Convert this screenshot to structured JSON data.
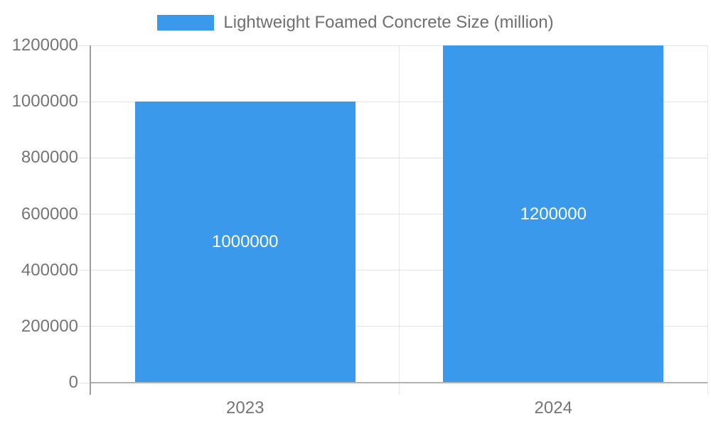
{
  "chart_data": {
    "type": "bar",
    "categories": [
      "2023",
      "2024"
    ],
    "series": [
      {
        "name": "Lightweight Foamed Concrete Size (million)",
        "values": [
          1000000,
          1200000
        ]
      }
    ],
    "bar_labels": [
      "1000000",
      "1200000"
    ],
    "title": "",
    "xlabel": "",
    "ylabel": "",
    "ylim": [
      0,
      1200000
    ],
    "yticks": [
      0,
      200000,
      400000,
      600000,
      800000,
      1000000,
      1200000
    ],
    "ytick_labels": [
      "0",
      "200000",
      "400000",
      "600000",
      "800000",
      "1000000",
      "1200000"
    ],
    "legend_position": "top-center",
    "grid": true,
    "colors": {
      "bar": "#3B99EC",
      "grid": "#E3E3E3",
      "vgrid": "#E7E7E7",
      "axis": "#9E9E9E",
      "baseline": "#B3B3B3",
      "text": "#757575",
      "legend_text": "#6F6F6F",
      "bar_label_text": "#FFFFFF",
      "background": "#FFFFFF"
    }
  }
}
